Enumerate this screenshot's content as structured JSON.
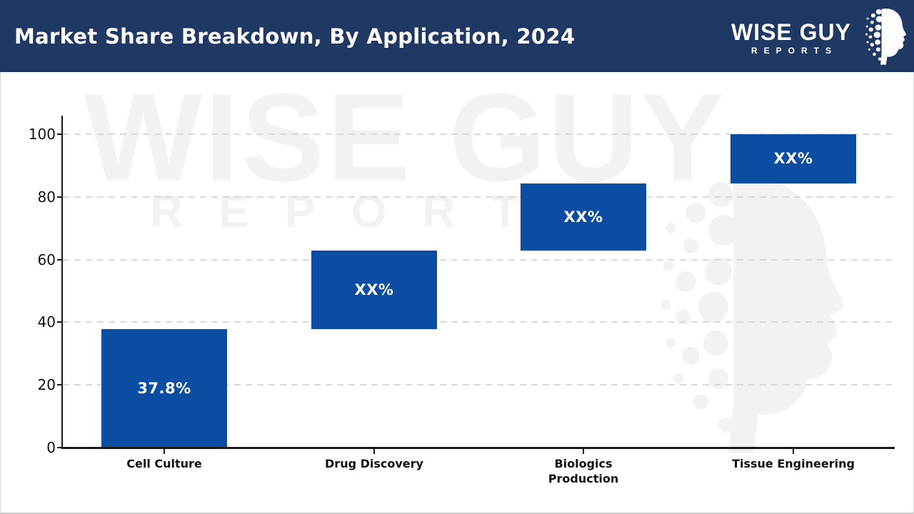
{
  "header": {
    "title": "Market Share Breakdown, By Application, 2024",
    "logo_name": "WISE GUY",
    "logo_sub": "REPORTS"
  },
  "watermark": {
    "line1": "WISE GUY",
    "line2": "REPORTS"
  },
  "colors": {
    "header_bg": "#1f3864",
    "bar_blue": "#0b4da2",
    "gridline": "#d9d9d9",
    "axis": "#1a1a1a",
    "watermark": "#f2f2f2"
  },
  "chart_data": {
    "type": "bar",
    "subtype": "waterfall",
    "title": "Market Share Breakdown, By Application, 2024",
    "xlabel": "",
    "ylabel": "",
    "ylim": [
      0,
      100
    ],
    "yticks": [
      0,
      20,
      40,
      60,
      80,
      100
    ],
    "grid": true,
    "legend": "none",
    "categories": [
      "Cell Culture",
      "Drug Discovery",
      "Biologics Production",
      "Tissue Engineering"
    ],
    "category_lines": [
      [
        "Cell Culture"
      ],
      [
        "Drug Discovery"
      ],
      [
        "Biologics",
        "Production"
      ],
      [
        "Tissue Engineering"
      ]
    ],
    "segments": [
      {
        "category": "Cell Culture",
        "start": 0,
        "end": 37.8,
        "value": 37.8,
        "label": "37.8%"
      },
      {
        "category": "Drug Discovery",
        "start": 37.8,
        "end": 62.9,
        "value": 25.1,
        "label": "XX%"
      },
      {
        "category": "Biologics Production",
        "start": 62.9,
        "end": 84.3,
        "value": 21.4,
        "label": "XX%"
      },
      {
        "category": "Tissue Engineering",
        "start": 84.3,
        "end": 100,
        "value": 15.7,
        "label": "XX%"
      }
    ],
    "bar_color": "#0b4da2",
    "value_label_color": "#ffffff"
  }
}
